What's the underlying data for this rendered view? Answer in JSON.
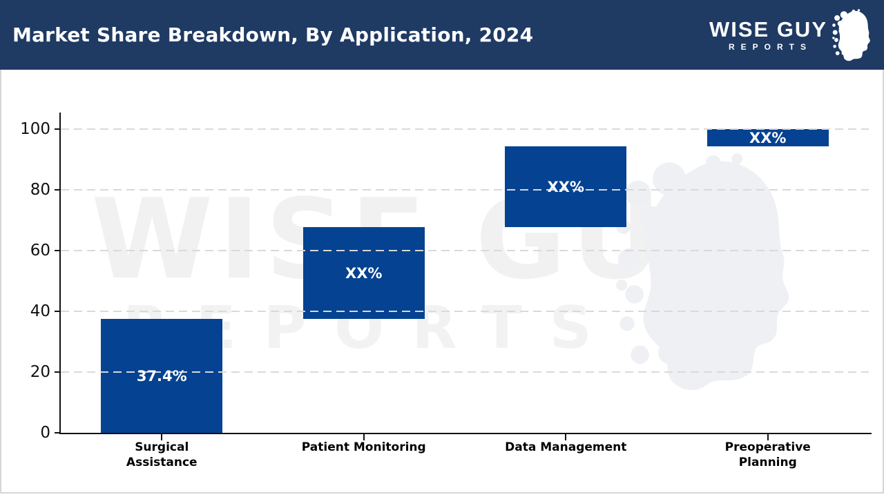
{
  "header": {
    "title": "Market Share Breakdown, By Application, 2024",
    "logo": {
      "line1": "WISE GUY",
      "line2": "REPORTS"
    }
  },
  "watermark": {
    "line1": "WISE GUY",
    "line2": "REPORTS"
  },
  "chart_data": {
    "type": "bar",
    "subtype": "waterfall",
    "title": "Market Share Breakdown, By Application, 2024",
    "categories": [
      "Surgical Assistance",
      "Patient Monitoring",
      "Data Management",
      "Preoperative Planning"
    ],
    "xtick_lines": [
      [
        "Surgical",
        "Assistance"
      ],
      [
        "Patient Monitoring"
      ],
      [
        "Data Management"
      ],
      [
        "Preoperative",
        "Planning"
      ]
    ],
    "series": [
      {
        "name": "Market share (%)",
        "segments": [
          {
            "category": "Surgical Assistance",
            "start": 0,
            "end": 37.4,
            "label": "37.4%"
          },
          {
            "category": "Patient Monitoring",
            "start": 37.4,
            "end": 67.7,
            "label": "XX%"
          },
          {
            "category": "Data Management",
            "start": 67.7,
            "end": 94.3,
            "label": "XX%"
          },
          {
            "category": "Preoperative Planning",
            "start": 94.3,
            "end": 100,
            "label": "XX%"
          }
        ]
      }
    ],
    "xlabel": "",
    "ylabel": "",
    "ylim": [
      0,
      100
    ],
    "yticks": [
      0,
      20,
      40,
      60,
      80,
      100
    ],
    "grid": {
      "horizontal": true,
      "style": "dashed",
      "drawn_over_bars": true
    },
    "legend": null,
    "colors": {
      "bar": "#054291",
      "bar_label": "#ffffff",
      "header_bg": "#1f3a63",
      "gridline": "#d9d9d9",
      "axis": "#111111",
      "watermark": "#f1f1f1"
    }
  }
}
